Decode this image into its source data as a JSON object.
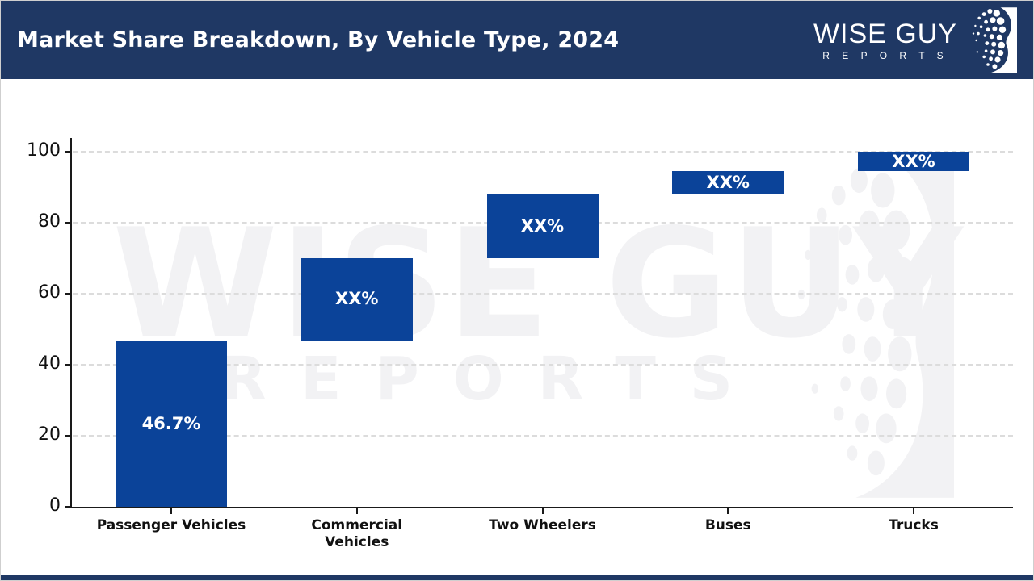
{
  "header": {
    "title": "Market Share Breakdown, By Vehicle Type, 2024",
    "logo": {
      "name_line": "WISE GUY",
      "sub_line": "R E P O R T S"
    }
  },
  "watermark": {
    "name_line": "WISE GUY",
    "sub_line": "REPORTS"
  },
  "chart_data": {
    "type": "bar",
    "subtype": "waterfall",
    "title": "Market Share Breakdown, By Vehicle Type, 2024",
    "categories": [
      "Passenger Vehicles",
      "Commercial\nVehicles",
      "Two Wheelers",
      "Buses",
      "Trucks"
    ],
    "segments": [
      {
        "category": "Passenger Vehicles",
        "start": 0,
        "end": 46.7,
        "label": "46.7%"
      },
      {
        "category": "Commercial Vehicles",
        "start": 46.7,
        "end": 70.0,
        "label": "XX%"
      },
      {
        "category": "Two Wheelers",
        "start": 70.0,
        "end": 87.8,
        "label": "XX%"
      },
      {
        "category": "Buses",
        "start": 87.8,
        "end": 94.4,
        "label": "XX%"
      },
      {
        "category": "Trucks",
        "start": 94.4,
        "end": 99.8,
        "label": "XX%"
      }
    ],
    "yticks": [
      0,
      20,
      40,
      60,
      80,
      100
    ],
    "ylim": [
      0,
      105
    ],
    "xlabel": "",
    "ylabel": "",
    "grid": "horizontal-dashed",
    "legend": "none",
    "bar_color": "#0b4399",
    "value_label_color": "#ffffff"
  },
  "colors": {
    "header_bg": "#1f3864",
    "footer_bg": "#1f3864",
    "axis": "#1a1a1a",
    "grid": "#dcdcdc",
    "watermark": "#f2f2f4"
  }
}
